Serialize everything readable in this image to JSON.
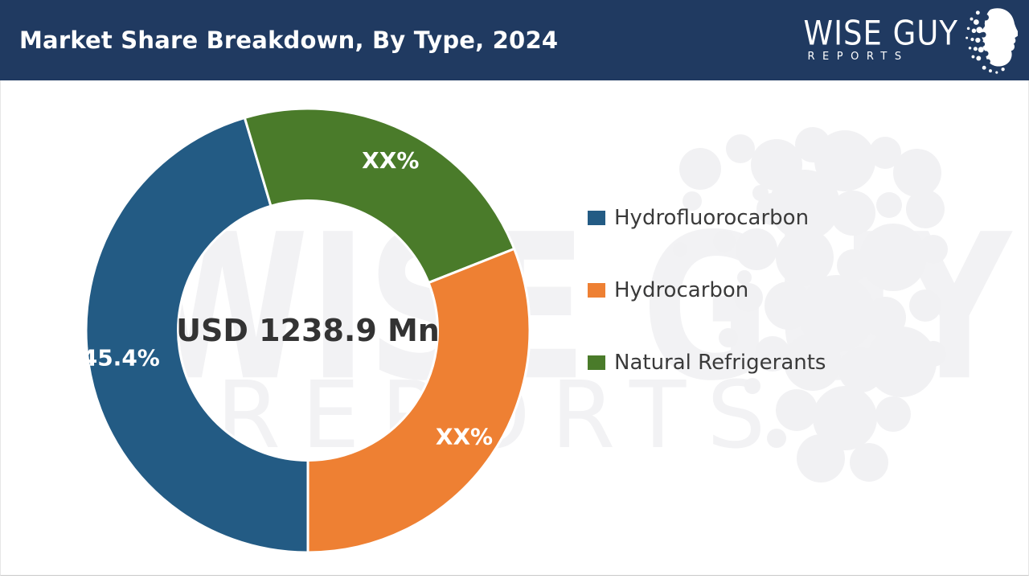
{
  "header": {
    "title": "Market Share Breakdown, By Type, 2024",
    "bg_color": "#203a61",
    "logo": {
      "line1": "WISE GUY",
      "line2": "REPORTS"
    }
  },
  "watermark": {
    "line1": "WISE GUY",
    "line2": "REPORTS"
  },
  "chart_data": {
    "type": "pie",
    "donut": true,
    "title": "Market Share Breakdown, By Type, 2024",
    "center_label": "USD 1238.9 Mn",
    "start_angle_deg": 180,
    "direction": "clockwise",
    "draw_order": [
      0,
      2,
      1
    ],
    "inner_radius_ratio": 0.585,
    "label_distance_ratio": 0.852,
    "gap_color": "#ffffff",
    "legend_position": "right",
    "slices": [
      {
        "name": "Hydrofluorocarbon",
        "value_pct": 45.4,
        "display_label": "45.4%",
        "color": "#235b84"
      },
      {
        "name": "Hydrocarbon",
        "value_pct": 31.0,
        "display_label": "XX%",
        "color": "#ee8033"
      },
      {
        "name": "Natural Refrigerants",
        "value_pct": 23.6,
        "display_label": "XX%",
        "color": "#4a7b2a"
      }
    ]
  }
}
